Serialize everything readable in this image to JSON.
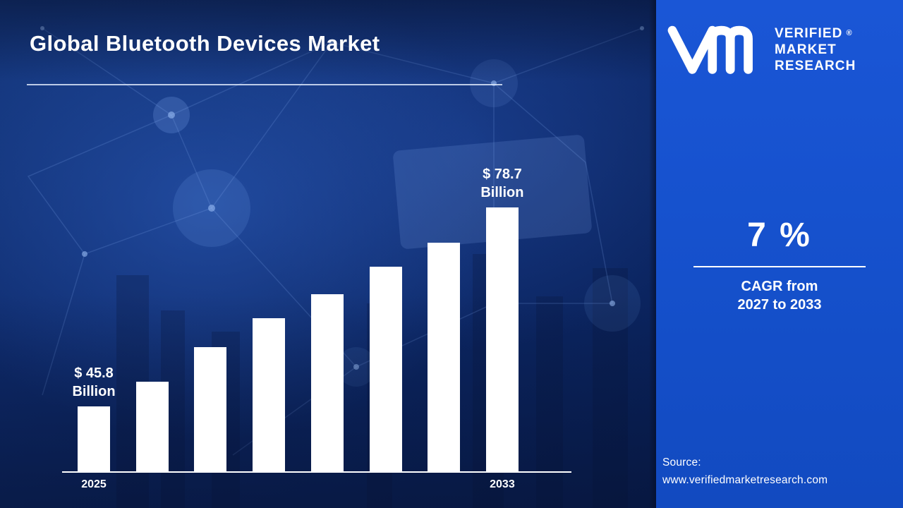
{
  "page": {
    "title": "Global Bluetooth Devices Market"
  },
  "chart_data": {
    "type": "bar",
    "title": "Global Bluetooth Devices Market",
    "categories": [
      "2025",
      "",
      "",
      "",
      "",
      "",
      "",
      "2033"
    ],
    "values": [
      45.8,
      49.8,
      55.6,
      60.4,
      64.3,
      68.9,
      72.9,
      78.7
    ],
    "unit": "USD Billion",
    "annotations": [
      {
        "bar_index": 0,
        "lines": [
          "$ 45.8",
          "Billion"
        ]
      },
      {
        "bar_index": 7,
        "lines": [
          "$ 78.7",
          "Billion"
        ]
      }
    ],
    "ylim": [
      35,
      80
    ],
    "grid": false,
    "legend": false,
    "bar_color": "#ffffff",
    "baseline_color": "#ffffff"
  },
  "brand": {
    "name_lines": [
      "VERIFIED",
      "MARKET",
      "RESEARCH"
    ],
    "registered_symbol": "®",
    "logo": "vmr-monogram"
  },
  "kpi": {
    "value": "7 %",
    "caption_lines": [
      "CAGR from",
      "2027 to 2033"
    ]
  },
  "source": {
    "label": "Source:",
    "url": "www.verifiedmarketresearch.com"
  },
  "colors": {
    "panel_blue": "#1551CC",
    "background_navy": "#0E2A6B",
    "bar_white": "#FFFFFF",
    "text_white": "#FFFFFF"
  }
}
